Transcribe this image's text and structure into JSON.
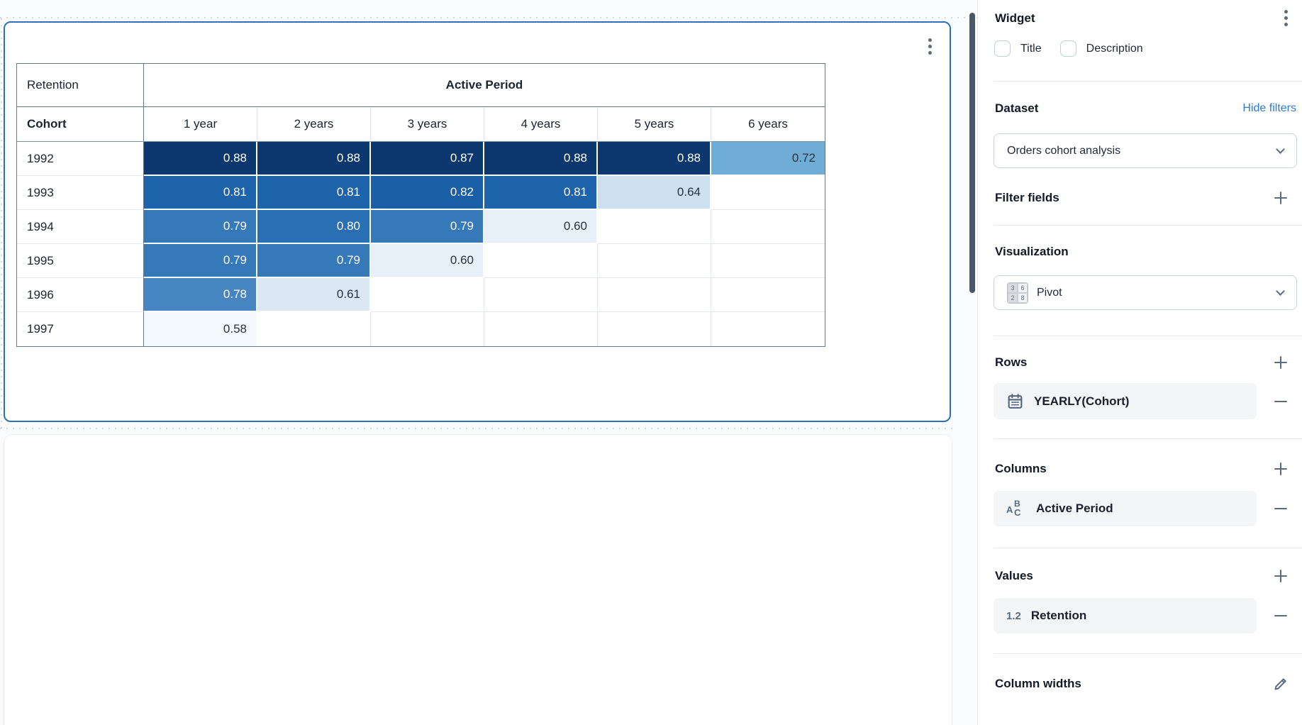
{
  "colors": {
    "selection_blue": "#2b71b8",
    "link_blue": "#2a79e0",
    "icon_slate": "#5b6b7c",
    "scrollbar": "#485869",
    "pill_bg": "#f4f5f7",
    "table_border_dark": "#64798d"
  },
  "pivot": {
    "corner_label": "Retention",
    "group_label": "Active Period",
    "row_key_label": "Cohort",
    "col_headers": [
      "1 year",
      "2 years",
      "3 years",
      "4 years",
      "5 years",
      "6 years"
    ],
    "rows": [
      {
        "label": "1992",
        "values": [
          "0.88",
          "0.88",
          "0.87",
          "0.88",
          "0.88",
          "0.72"
        ]
      },
      {
        "label": "1993",
        "values": [
          "0.81",
          "0.81",
          "0.82",
          "0.81",
          "0.64",
          ""
        ]
      },
      {
        "label": "1994",
        "values": [
          "0.79",
          "0.80",
          "0.79",
          "0.60",
          "",
          ""
        ]
      },
      {
        "label": "1995",
        "values": [
          "0.79",
          "0.79",
          "0.60",
          "",
          "",
          ""
        ]
      },
      {
        "label": "1996",
        "values": [
          "0.78",
          "0.61",
          "",
          "",
          "",
          ""
        ]
      },
      {
        "label": "1997",
        "values": [
          "0.58",
          "",
          "",
          "",
          "",
          ""
        ]
      }
    ],
    "value_styles": {
      "0.88": {
        "bg": "#0d386f",
        "fg": "#ffffff"
      },
      "0.87": {
        "bg": "#0d386f",
        "fg": "#ffffff"
      },
      "0.82": {
        "bg": "#1a5ea8",
        "fg": "#ffffff"
      },
      "0.81": {
        "bg": "#1e64ac",
        "fg": "#ffffff"
      },
      "0.80": {
        "bg": "#2a6fb3",
        "fg": "#ffffff"
      },
      "0.79": {
        "bg": "#3579b9",
        "fg": "#ffffff"
      },
      "0.78": {
        "bg": "#4685c1",
        "fg": "#ffffff"
      },
      "0.72": {
        "bg": "#6fadd6",
        "fg": "#27313f"
      },
      "0.64": {
        "bg": "#cde0f0",
        "fg": "#27313f"
      },
      "0.61": {
        "bg": "#dbe7f3",
        "fg": "#27313f"
      },
      "0.60": {
        "bg": "#e7eff8",
        "fg": "#27313f"
      },
      "0.58": {
        "bg": "#f4f9fd",
        "fg": "#27313f"
      }
    }
  },
  "panel": {
    "title": "Widget",
    "title_checkbox": "Title",
    "description_checkbox": "Description",
    "dataset": {
      "heading": "Dataset",
      "link": "Hide filters",
      "selected": "Orders cohort analysis"
    },
    "filter_fields": {
      "heading": "Filter fields"
    },
    "visualization": {
      "heading": "Visualization",
      "selected": "Pivot"
    },
    "rows": {
      "heading": "Rows",
      "item": "YEARLY(Cohort)"
    },
    "columns": {
      "heading": "Columns",
      "item": "Active Period"
    },
    "values": {
      "heading": "Values",
      "item_icon": "1.2",
      "item": "Retention"
    },
    "column_widths": {
      "heading": "Column widths"
    }
  },
  "icons": {
    "pivot_numbers": [
      "3",
      "6",
      "2",
      "8"
    ],
    "abc_letters": [
      "A",
      "B",
      "C"
    ]
  }
}
